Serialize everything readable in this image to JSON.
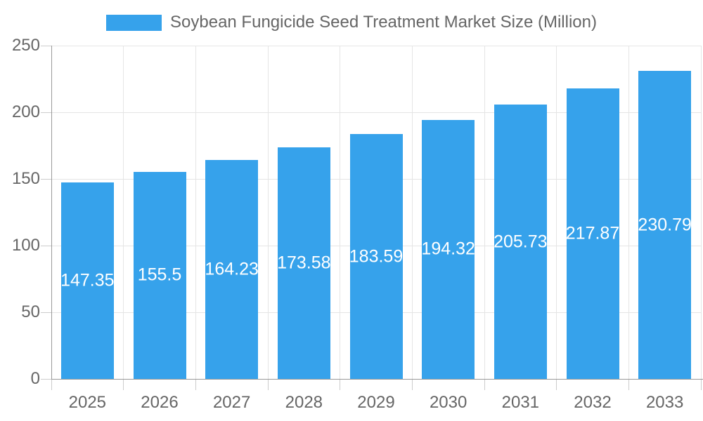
{
  "chart_data": {
    "type": "bar",
    "title": "Soybean Fungicide Seed Treatment Market Size (Million)",
    "legend": [
      "Soybean Fungicide Seed Treatment Market Size (Million)"
    ],
    "legend_position": "top-center",
    "categories": [
      "2025",
      "2026",
      "2027",
      "2028",
      "2029",
      "2030",
      "2031",
      "2032",
      "2033"
    ],
    "series": [
      {
        "name": "Soybean Fungicide Seed Treatment Market Size (Million)",
        "values": [
          147.35,
          155.5,
          164.23,
          173.58,
          183.59,
          194.32,
          205.73,
          217.87,
          230.79
        ]
      }
    ],
    "data_labels_shown": true,
    "xlabel": "",
    "ylabel": "",
    "ylim": [
      0,
      250
    ],
    "yticks": [
      0,
      50,
      100,
      150,
      200,
      250
    ],
    "grid": true,
    "colors": {
      "bar": "#36A2EB",
      "bar_label_text": "#ffffff",
      "axis_text": "#666666",
      "legend_text": "#666666",
      "gridline": "#e5e5e5",
      "tick": "#cccccc",
      "axis_line": "#999999",
      "background": "#ffffff"
    }
  }
}
